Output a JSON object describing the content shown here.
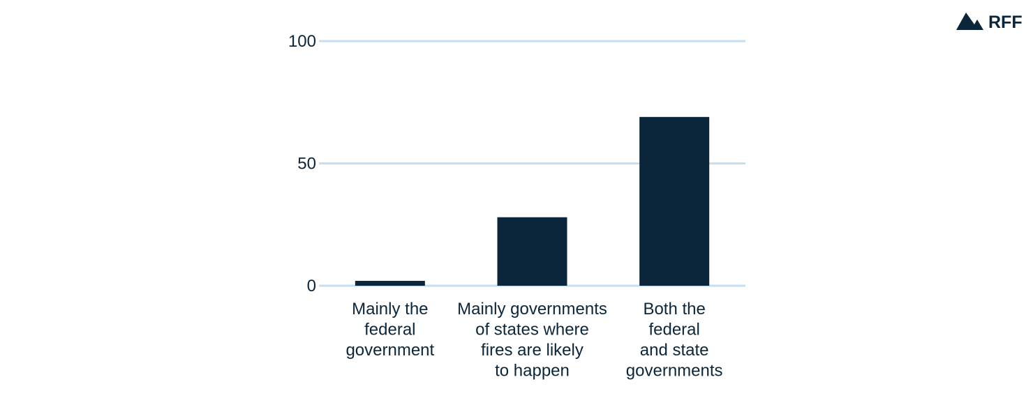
{
  "chart_data": {
    "type": "bar",
    "categories": [
      [
        "Mainly the",
        "federal",
        "government"
      ],
      [
        "Mainly governments",
        "of states where",
        "fires are likely",
        "to happen"
      ],
      [
        "Both the",
        "federal",
        "and state",
        "governments"
      ]
    ],
    "values": [
      2,
      28,
      69
    ],
    "ylim": [
      0,
      100
    ],
    "yticks": [
      0,
      50,
      100
    ],
    "title": "",
    "xlabel": "",
    "ylabel": "",
    "grid": true,
    "bar_color": "#0b263a",
    "grid_color": "#c5dff0"
  },
  "brand": {
    "logo_text": "RFF",
    "color": "#0b263a"
  }
}
